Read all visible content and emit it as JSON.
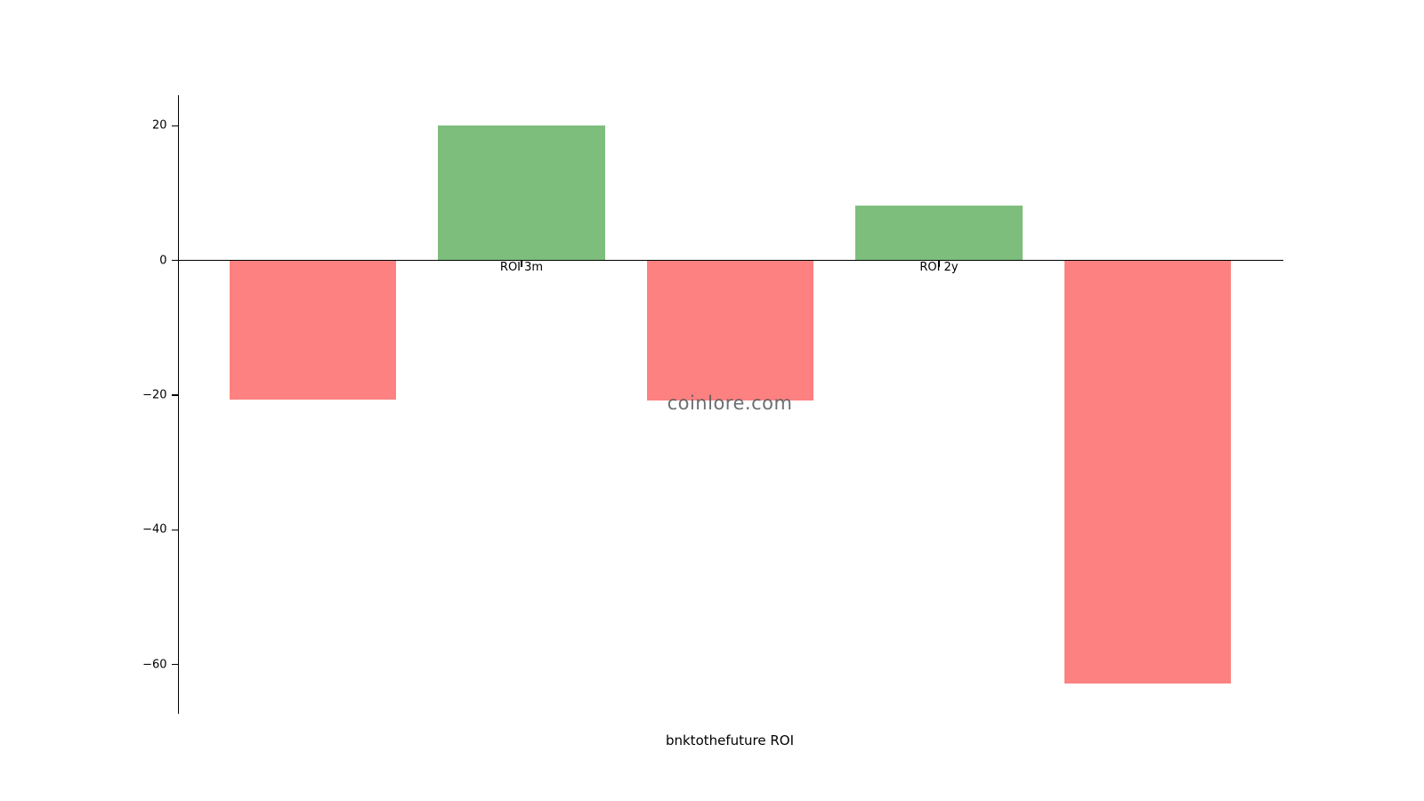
{
  "chart_data": {
    "type": "bar",
    "title": "",
    "xlabel": "bnktothefuture ROI",
    "watermark": "coinlore.com",
    "bars": [
      {
        "label": null,
        "value": -20.7
      },
      {
        "label": "ROI 3m",
        "value": 20.0
      },
      {
        "label": null,
        "value": -20.8
      },
      {
        "label": "ROI 2y",
        "value": 8.2
      },
      {
        "label": null,
        "value": -62.8
      }
    ],
    "y_ticks": [
      {
        "label": "20",
        "value": 20
      },
      {
        "label": "0",
        "value": 0
      },
      {
        "label": "−20",
        "value": -20
      },
      {
        "label": "−40",
        "value": -40
      },
      {
        "label": "−60",
        "value": -60
      }
    ],
    "ylim": [
      -67.3,
      24.4
    ],
    "xlim": [
      -0.65,
      4.65
    ],
    "grid": false,
    "legend": null,
    "colors": {
      "positive": "#7dbe7d",
      "negative": "#fd8181",
      "axis": "#000000",
      "tick_text": "#000000",
      "watermark_text": "#53575a"
    }
  }
}
